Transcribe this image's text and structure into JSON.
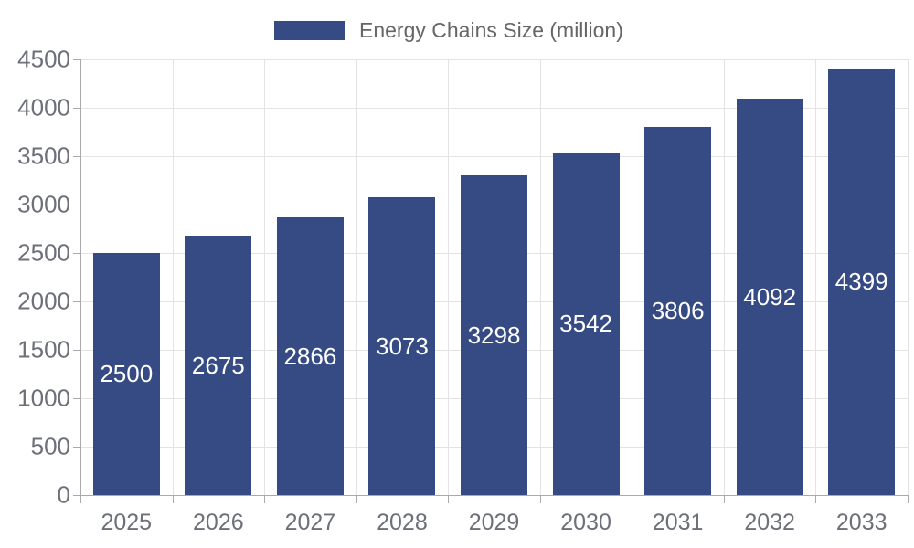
{
  "chart_data": {
    "type": "bar",
    "title": "Energy Chains Size (million)",
    "categories": [
      "2025",
      "2026",
      "2027",
      "2028",
      "2029",
      "2030",
      "2031",
      "2032",
      "2033"
    ],
    "series": [
      {
        "name": "Energy Chains Size (million)",
        "values": [
          2500,
          2675,
          2866,
          3073,
          3298,
          3542,
          3806,
          4092,
          4399
        ]
      }
    ],
    "value_labels": [
      "2500",
      "2675",
      "2866",
      "3073",
      "3298",
      "3542",
      "3806",
      "4092",
      "4399"
    ],
    "xlabel": "",
    "ylabel": "",
    "ylim": [
      0,
      4500
    ],
    "ytick_step": 500,
    "ytick_labels": [
      "0",
      "500",
      "1000",
      "1500",
      "2000",
      "2500",
      "3000",
      "3500",
      "4000",
      "4500"
    ],
    "grid": true,
    "legend_position": "top-center",
    "colors": {
      "bar": "#364a84",
      "value_label": "#ffffff",
      "axis_label": "#6e7079",
      "grid_line": "#e3e3e6",
      "axis_line": "#aaaaaa",
      "legend_text": "#666666",
      "background": "#ffffff"
    }
  }
}
